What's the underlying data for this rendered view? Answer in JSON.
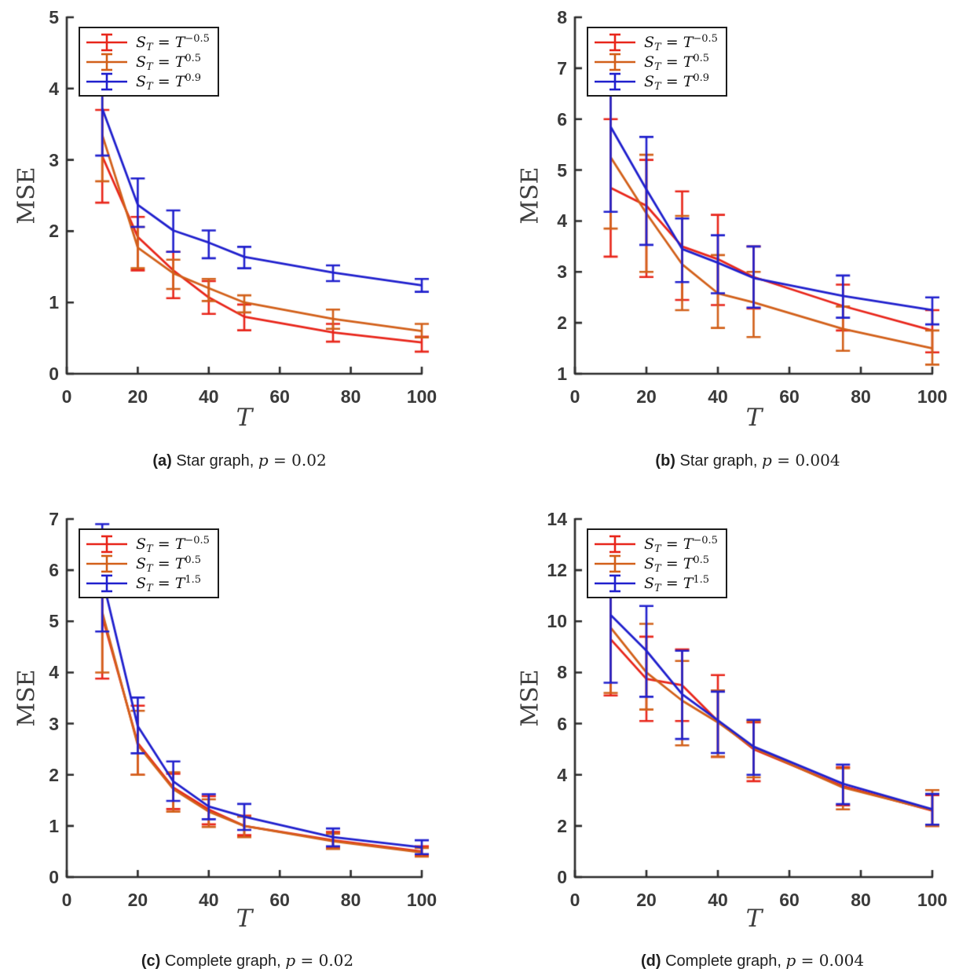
{
  "figure": {
    "background": "#ffffff",
    "rows": 2,
    "cols": 2,
    "description_visible_text_only": true
  },
  "colors": {
    "red": "#e8261b",
    "orange": "#d2601a",
    "blue": "#2020cd",
    "axis": "#2b2b2b",
    "tick_label": "#3a3a3a",
    "legend_border": "#1c1c1c",
    "legend_bg": "#ffffff"
  },
  "chart_data": [
    {
      "id": "a",
      "type": "line",
      "xlabel": "T",
      "ylabel": "MSE",
      "caption": {
        "tag": "(a)",
        "title": "Star graph,",
        "param_var": "p",
        "param_rest": " = 0.02"
      },
      "xlim": [
        0,
        100
      ],
      "ylim": [
        0,
        5
      ],
      "xticks": [
        0,
        20,
        40,
        60,
        80,
        100
      ],
      "yticks": [
        0,
        1,
        2,
        3,
        4,
        5
      ],
      "grid": false,
      "legend_position": "top-left",
      "x": [
        10,
        20,
        30,
        40,
        50,
        75,
        100
      ],
      "series": [
        {
          "color_key": "red",
          "legend": {
            "base": "S",
            "base_sub": "T",
            "eq": " = ",
            "var": "T",
            "exp": "−0.5"
          },
          "y": [
            3.05,
            1.92,
            1.45,
            1.07,
            0.8,
            0.58,
            0.44
          ],
          "lo": [
            2.4,
            1.45,
            1.06,
            0.84,
            0.61,
            0.45,
            0.31
          ],
          "hi": [
            3.7,
            2.2,
            1.71,
            1.3,
            0.97,
            0.7,
            0.52
          ]
        },
        {
          "color_key": "orange",
          "legend": {
            "base": "S",
            "base_sub": "T",
            "eq": " = ",
            "var": "T",
            "exp": "0.5"
          },
          "y": [
            3.35,
            1.77,
            1.41,
            1.2,
            1.0,
            0.77,
            0.6
          ],
          "lo": [
            2.7,
            1.48,
            1.19,
            1.02,
            0.86,
            0.63,
            0.51
          ],
          "hi": [
            4.0,
            2.06,
            1.6,
            1.33,
            1.1,
            0.9,
            0.7
          ]
        },
        {
          "color_key": "blue",
          "legend": {
            "base": "S",
            "base_sub": "T",
            "eq": " = ",
            "var": "T",
            "exp": "0.9"
          },
          "y": [
            3.72,
            2.37,
            2.01,
            1.84,
            1.64,
            1.42,
            1.24
          ],
          "lo": [
            3.06,
            2.06,
            1.71,
            1.62,
            1.48,
            1.3,
            1.15
          ],
          "hi": [
            4.3,
            2.74,
            2.29,
            2.01,
            1.78,
            1.52,
            1.33
          ]
        }
      ]
    },
    {
      "id": "b",
      "type": "line",
      "xlabel": "T",
      "ylabel": "MSE",
      "caption": {
        "tag": "(b)",
        "title": "Star graph,",
        "param_var": "p",
        "param_rest": " = 0.004"
      },
      "xlim": [
        0,
        100
      ],
      "ylim": [
        1,
        8
      ],
      "xticks": [
        0,
        20,
        40,
        60,
        80,
        100
      ],
      "yticks": [
        1,
        2,
        3,
        4,
        5,
        6,
        7,
        8
      ],
      "grid": false,
      "legend_position": "top-left",
      "x": [
        10,
        20,
        30,
        40,
        50,
        75,
        100
      ],
      "series": [
        {
          "color_key": "red",
          "legend": {
            "base": "S",
            "base_sub": "T",
            "eq": " = ",
            "var": "T",
            "exp": "−0.5"
          },
          "y": [
            4.65,
            4.3,
            3.5,
            3.25,
            2.9,
            2.33,
            1.85
          ],
          "lo": [
            3.3,
            2.9,
            2.45,
            2.35,
            2.28,
            1.85,
            1.42
          ],
          "hi": [
            6.0,
            5.2,
            4.58,
            4.12,
            3.5,
            2.75,
            2.25
          ]
        },
        {
          "color_key": "orange",
          "legend": {
            "base": "S",
            "base_sub": "T",
            "eq": " = ",
            "var": "T",
            "exp": "0.5"
          },
          "y": [
            5.25,
            4.15,
            3.15,
            2.58,
            2.4,
            1.88,
            1.5
          ],
          "lo": [
            3.85,
            3.0,
            2.25,
            1.9,
            1.72,
            1.45,
            1.18
          ],
          "hi": [
            6.65,
            5.3,
            4.1,
            3.33,
            3.0,
            2.32,
            1.85
          ]
        },
        {
          "color_key": "blue",
          "legend": {
            "base": "S",
            "base_sub": "T",
            "eq": " = ",
            "var": "T",
            "exp": "0.9"
          },
          "y": [
            5.85,
            4.62,
            3.45,
            3.18,
            2.88,
            2.53,
            2.25
          ],
          "lo": [
            4.18,
            3.53,
            2.8,
            2.58,
            2.3,
            2.1,
            1.97
          ],
          "hi": [
            6.9,
            5.65,
            4.05,
            3.72,
            3.5,
            2.93,
            2.5
          ]
        }
      ]
    },
    {
      "id": "c",
      "type": "line",
      "xlabel": "T",
      "ylabel": "MSE",
      "caption": {
        "tag": "(c)",
        "title": "Complete graph,",
        "param_var": "p",
        "param_rest": " = 0.02"
      },
      "xlim": [
        0,
        100
      ],
      "ylim": [
        0,
        7
      ],
      "xticks": [
        0,
        20,
        40,
        60,
        80,
        100
      ],
      "yticks": [
        0,
        1,
        2,
        3,
        4,
        5,
        6,
        7
      ],
      "grid": false,
      "legend_position": "top-left",
      "x": [
        10,
        20,
        30,
        40,
        50,
        75,
        100
      ],
      "series": [
        {
          "color_key": "red",
          "legend": {
            "base": "S",
            "base_sub": "T",
            "eq": " = ",
            "var": "T",
            "exp": "−0.5"
          },
          "y": [
            5.1,
            2.62,
            1.75,
            1.32,
            1.0,
            0.72,
            0.5
          ],
          "lo": [
            3.88,
            2.0,
            1.33,
            1.03,
            0.82,
            0.58,
            0.41
          ],
          "hi": [
            6.3,
            3.35,
            2.02,
            1.58,
            1.2,
            0.88,
            0.6
          ]
        },
        {
          "color_key": "orange",
          "legend": {
            "base": "S",
            "base_sub": "T",
            "eq": " = ",
            "var": "T",
            "exp": "0.5"
          },
          "y": [
            5.18,
            2.58,
            1.72,
            1.28,
            1.0,
            0.7,
            0.48
          ],
          "lo": [
            4.0,
            2.0,
            1.28,
            0.98,
            0.78,
            0.55,
            0.4
          ],
          "hi": [
            6.4,
            3.25,
            2.05,
            1.52,
            1.18,
            0.85,
            0.57
          ]
        },
        {
          "color_key": "blue",
          "legend": {
            "base": "S",
            "base_sub": "T",
            "eq": " = ",
            "var": "T",
            "exp": "1.5"
          },
          "y": [
            5.85,
            2.95,
            1.87,
            1.38,
            1.18,
            0.78,
            0.58
          ],
          "lo": [
            4.8,
            2.42,
            1.49,
            1.13,
            0.92,
            0.6,
            0.45
          ],
          "hi": [
            6.9,
            3.51,
            2.26,
            1.62,
            1.43,
            0.95,
            0.72
          ]
        }
      ]
    },
    {
      "id": "d",
      "type": "line",
      "xlabel": "T",
      "ylabel": "MSE",
      "caption": {
        "tag": "(d)",
        "title": "Complete graph,",
        "param_var": "p",
        "param_rest": " = 0.004"
      },
      "xlim": [
        0,
        100
      ],
      "ylim": [
        0,
        14
      ],
      "xticks": [
        0,
        20,
        40,
        60,
        80,
        100
      ],
      "yticks": [
        0,
        2,
        4,
        6,
        8,
        10,
        12,
        14
      ],
      "grid": false,
      "legend_position": "top-left",
      "x": [
        10,
        20,
        30,
        40,
        50,
        75,
        100
      ],
      "series": [
        {
          "color_key": "red",
          "legend": {
            "base": "S",
            "base_sub": "T",
            "eq": " = ",
            "var": "T",
            "exp": "−0.5"
          },
          "y": [
            9.3,
            7.75,
            7.5,
            6.1,
            5.0,
            3.55,
            2.6
          ],
          "lo": [
            7.1,
            6.1,
            6.1,
            4.7,
            3.75,
            2.8,
            2.0
          ],
          "hi": [
            11.5,
            9.4,
            8.9,
            7.9,
            6.05,
            4.3,
            3.2
          ]
        },
        {
          "color_key": "orange",
          "legend": {
            "base": "S",
            "base_sub": "T",
            "eq": " = ",
            "var": "T",
            "exp": "0.5"
          },
          "y": [
            9.75,
            8.0,
            6.9,
            6.05,
            5.05,
            3.5,
            2.62
          ],
          "lo": [
            7.2,
            6.55,
            5.15,
            4.7,
            3.9,
            2.65,
            2.0
          ],
          "hi": [
            12.2,
            9.9,
            8.45,
            7.3,
            6.1,
            4.25,
            3.4
          ]
        },
        {
          "color_key": "blue",
          "legend": {
            "base": "S",
            "base_sub": "T",
            "eq": " = ",
            "var": "T",
            "exp": "1.5"
          },
          "y": [
            10.25,
            8.85,
            7.15,
            6.13,
            5.1,
            3.65,
            2.65
          ],
          "lo": [
            7.6,
            7.05,
            5.4,
            4.85,
            4.0,
            2.85,
            2.05
          ],
          "hi": [
            11.25,
            10.6,
            8.85,
            7.25,
            6.15,
            4.4,
            3.25
          ]
        }
      ]
    }
  ]
}
